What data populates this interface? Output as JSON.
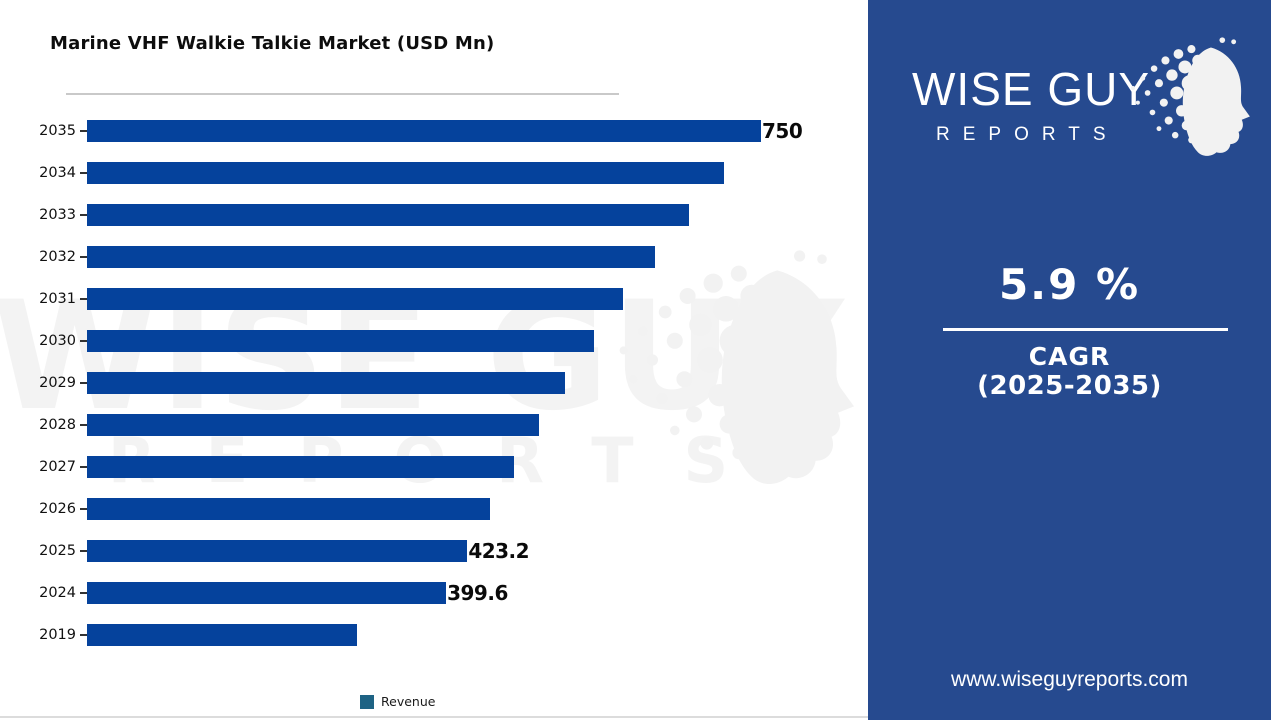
{
  "chart_data": {
    "type": "bar",
    "orientation": "horizontal",
    "title": "Marine VHF Walkie Talkie Market (USD Mn)",
    "unit": "USD Mn",
    "xlim": [
      0,
      750
    ],
    "grid": false,
    "legend_position": "bottom",
    "legend": [
      "Revenue"
    ],
    "bar_color": "#05429c",
    "rows": [
      {
        "year": "2035",
        "value": 750,
        "label": "750"
      },
      {
        "year": "2034",
        "value": 708.9,
        "label": ""
      },
      {
        "year": "2033",
        "value": 669.4,
        "label": ""
      },
      {
        "year": "2032",
        "value": 632.2,
        "label": ""
      },
      {
        "year": "2031",
        "value": 596.9,
        "label": ""
      },
      {
        "year": "2030",
        "value": 563.7,
        "label": ""
      },
      {
        "year": "2029",
        "value": 532.3,
        "label": ""
      },
      {
        "year": "2028",
        "value": 502.6,
        "label": ""
      },
      {
        "year": "2027",
        "value": 474.6,
        "label": ""
      },
      {
        "year": "2026",
        "value": 448.2,
        "label": ""
      },
      {
        "year": "2025",
        "value": 423.2,
        "label": "423.2"
      },
      {
        "year": "2024",
        "value": 399.6,
        "label": "399.6"
      },
      {
        "year": "2019",
        "value": 300,
        "label": ""
      }
    ]
  },
  "legend": {
    "label": "Revenue",
    "color": "#1e6384"
  },
  "watermark": {
    "line1": "WISE GUY",
    "line2": "REPORTS"
  },
  "sidebar": {
    "bg_color": "#264a8f",
    "logo": {
      "line1": "WISE GUY",
      "line2": "REPORTS"
    },
    "cagr": {
      "value": "5.9 %",
      "label_line1": "CAGR",
      "label_line2": "(2025-2035)"
    },
    "website": "www.wiseguyreports.com"
  }
}
